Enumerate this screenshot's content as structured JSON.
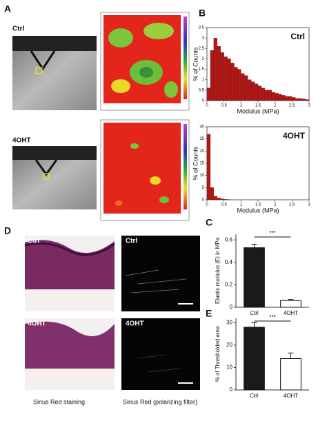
{
  "panel_labels": [
    "A",
    "B",
    "C",
    "D",
    "E"
  ],
  "panel_a": {
    "labels": [
      "Ctrl",
      "4OHT"
    ]
  },
  "panel_d": {
    "labels": [
      "Ctrl",
      "Ctrl",
      "4OHT",
      "4OHT"
    ],
    "captions": [
      "Sirius Red staining",
      "Sirius Red (polarizing filter)"
    ]
  },
  "chart_data": [
    {
      "type": "histogram",
      "label": "Ctrl",
      "xlabel": "Modulus (MPa)",
      "ylabel": "% of Counts",
      "color": "#b01818",
      "bins": [
        0,
        0.1,
        0.2,
        0.3,
        0.4,
        0.5,
        0.6,
        0.7,
        0.8,
        0.9,
        1,
        1.1,
        1.2,
        1.3,
        1.4,
        1.5,
        1.6,
        1.7,
        1.8,
        1.9,
        2,
        2.1,
        2.2,
        2.3,
        2.4,
        2.5,
        2.6,
        2.7,
        2.8,
        2.9,
        3
      ],
      "counts": [
        0.6,
        2.4,
        3.0,
        2.6,
        2.3,
        2.1,
        2.0,
        1.8,
        1.6,
        1.5,
        1.3,
        1.2,
        1.0,
        0.9,
        0.8,
        0.7,
        0.6,
        0.5,
        0.5,
        0.4,
        0.35,
        0.3,
        0.25,
        0.2,
        0.2,
        0.15,
        0.1,
        0.1,
        0.08,
        0.05
      ],
      "xlim": [
        0,
        3
      ],
      "xticks": [
        0,
        0.5,
        1,
        1.5,
        2,
        2.5,
        3
      ],
      "ylim": [
        0,
        3.5
      ],
      "yticks": [
        0,
        0.5,
        1,
        1.5,
        2,
        2.5,
        3,
        3.5
      ]
    },
    {
      "type": "histogram",
      "label": "4OHT",
      "xlabel": "Modulus (MPa)",
      "ylabel": "% of Counts",
      "color": "#b01818",
      "bins": [
        0,
        0.1,
        0.2,
        0.3,
        0.4,
        0.5,
        0.6,
        0.7,
        0.8,
        0.9,
        1,
        1.1,
        1.2,
        1.3,
        1.4,
        1.5,
        1.6,
        1.7,
        1.8,
        1.9,
        2,
        2.1,
        2.2,
        2.3,
        2.4,
        2.5,
        2.6,
        2.7,
        2.8,
        2.9,
        3
      ],
      "counts": [
        27,
        5,
        1.5,
        0.8,
        0.4,
        0.2,
        0.1,
        0,
        0,
        0,
        0,
        0,
        0,
        0,
        0,
        0,
        0,
        0,
        0,
        0,
        0,
        0,
        0,
        0,
        0,
        0,
        0,
        0,
        0,
        0
      ],
      "xlim": [
        0,
        3
      ],
      "xticks": [
        0,
        0.5,
        1,
        1.5,
        2,
        2.5,
        3
      ],
      "ylim": [
        0,
        30
      ],
      "yticks": [
        0,
        5,
        10,
        15,
        20,
        25,
        30
      ]
    },
    {
      "type": "bar",
      "ylabel": "Elastic modulus (E) in MPa",
      "categories": [
        "Ctrl",
        "4OHT"
      ],
      "values": [
        0.53,
        0.06
      ],
      "errors": [
        0.03,
        0.01
      ],
      "colors": [
        "#1a1a1a",
        "#ffffff"
      ],
      "annotation": "***",
      "ylim": [
        0,
        0.65
      ],
      "yticks": [
        0,
        0.2,
        0.4,
        0.6
      ]
    },
    {
      "type": "bar",
      "ylabel": "% of Thresholded area",
      "categories": [
        "Ctrl",
        "4OHT"
      ],
      "values": [
        28,
        14
      ],
      "errors": [
        2,
        2.5
      ],
      "colors": [
        "#1a1a1a",
        "#ffffff"
      ],
      "annotation": "***",
      "ylim": [
        0,
        32
      ],
      "yticks": [
        0,
        10,
        20,
        30
      ]
    }
  ]
}
